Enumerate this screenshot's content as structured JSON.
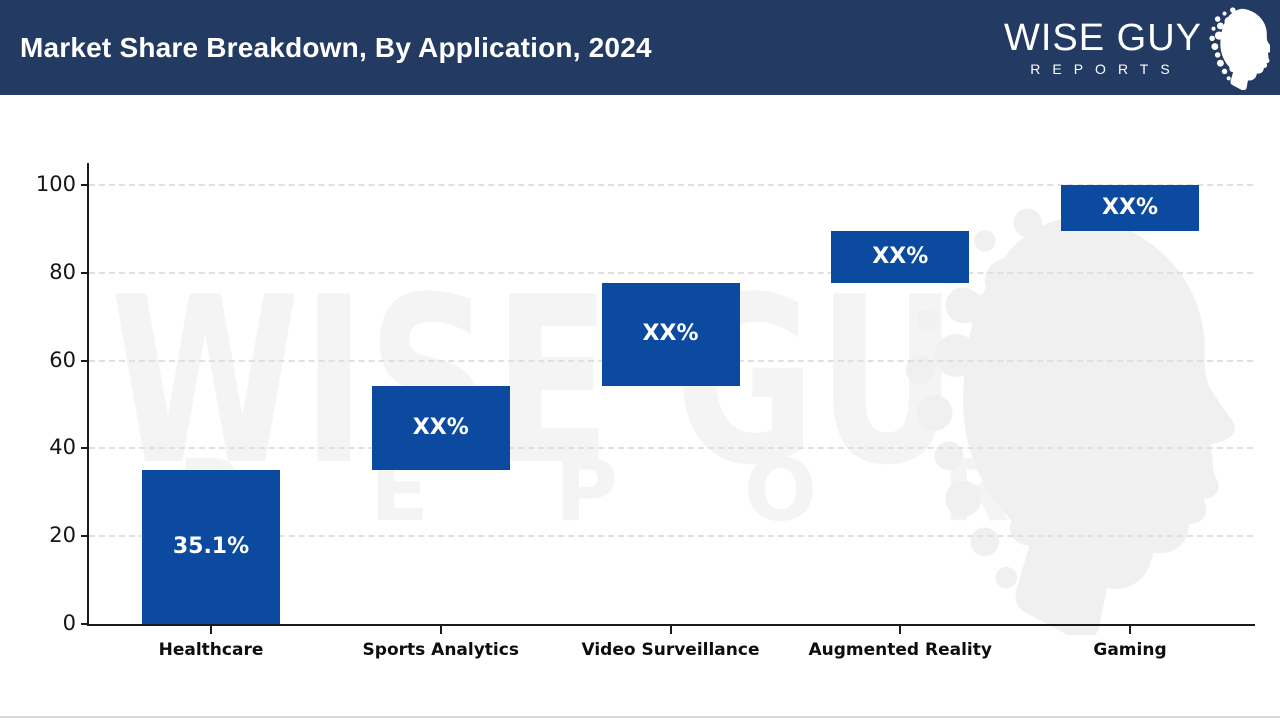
{
  "header": {
    "title": "Market Share Breakdown, By Application, 2024",
    "bg_color": "#233a63",
    "logo": {
      "wordmark": "WISE GUY",
      "subtext": "REPORTS",
      "face_icon": "dotted-face-profile-icon"
    }
  },
  "watermark": {
    "line1": "WISE GUY",
    "line2": "R E P O R T S",
    "face_icon": "dotted-face-profile-icon",
    "color": "#f4f4f4"
  },
  "chart_data": {
    "type": "bar",
    "variant": "waterfall",
    "title": "Market Share Breakdown, By Application, 2024",
    "xlabel": "",
    "ylabel": "",
    "ylim": [
      0,
      105
    ],
    "yticks": [
      0,
      20,
      40,
      60,
      80,
      100
    ],
    "grid": {
      "axis": "y",
      "style": "dashed",
      "color": "#e0e0e0"
    },
    "legend": "none",
    "bar_color": "#0b4a9e",
    "categories": [
      "Healthcare",
      "Sports Analytics",
      "Video Surveillance",
      "Augmented Reality",
      "Gaming"
    ],
    "segments": [
      {
        "category": "Healthcare",
        "start": 0,
        "end": 35.1,
        "label": "35.1%"
      },
      {
        "category": "Sports Analytics",
        "start": 35.1,
        "end": 54.2,
        "label": "XX%"
      },
      {
        "category": "Video Surveillance",
        "start": 54.2,
        "end": 77.7,
        "label": "XX%"
      },
      {
        "category": "Augmented Reality",
        "start": 77.7,
        "end": 89.5,
        "label": "XX%"
      },
      {
        "category": "Gaming",
        "start": 89.5,
        "end": 100,
        "label": "XX%"
      }
    ]
  }
}
